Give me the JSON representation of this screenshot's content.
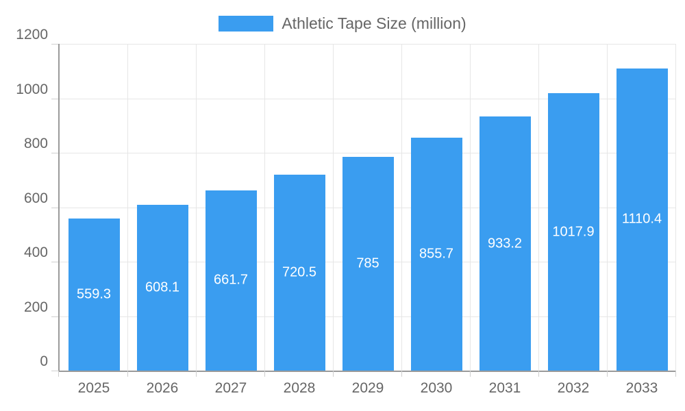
{
  "colors": {
    "bar": "#3A9DF0",
    "axis_text": "#666666",
    "grid_line": "#e6e6e6",
    "axis_line": "#9a9a9a",
    "value_label_text": "#ffffff",
    "background": "#ffffff"
  },
  "legend": {
    "label": "Athletic Tape Size (million)"
  },
  "chart_data": {
    "type": "bar",
    "title": "Athletic Tape Size (million)",
    "series_name": "Athletic Tape Size (million)",
    "categories": [
      "2025",
      "2026",
      "2027",
      "2028",
      "2029",
      "2030",
      "2031",
      "2032",
      "2033"
    ],
    "values": [
      559.3,
      608.1,
      661.7,
      720.5,
      785,
      855.7,
      933.2,
      1017.9,
      1110.4
    ],
    "value_labels": [
      "559.3",
      "608.1",
      "661.7",
      "720.5",
      "785",
      "855.7",
      "933.2",
      "1017.9",
      "1110.4"
    ],
    "xlabel": "",
    "ylabel": "",
    "ylim": [
      0,
      1200
    ],
    "ytick_step": 200,
    "ytick_labels": [
      "0",
      "200",
      "400",
      "600",
      "800",
      "1000",
      "1200"
    ],
    "grid": true,
    "legend_position": "top",
    "value_label_placement": "inside-center"
  }
}
